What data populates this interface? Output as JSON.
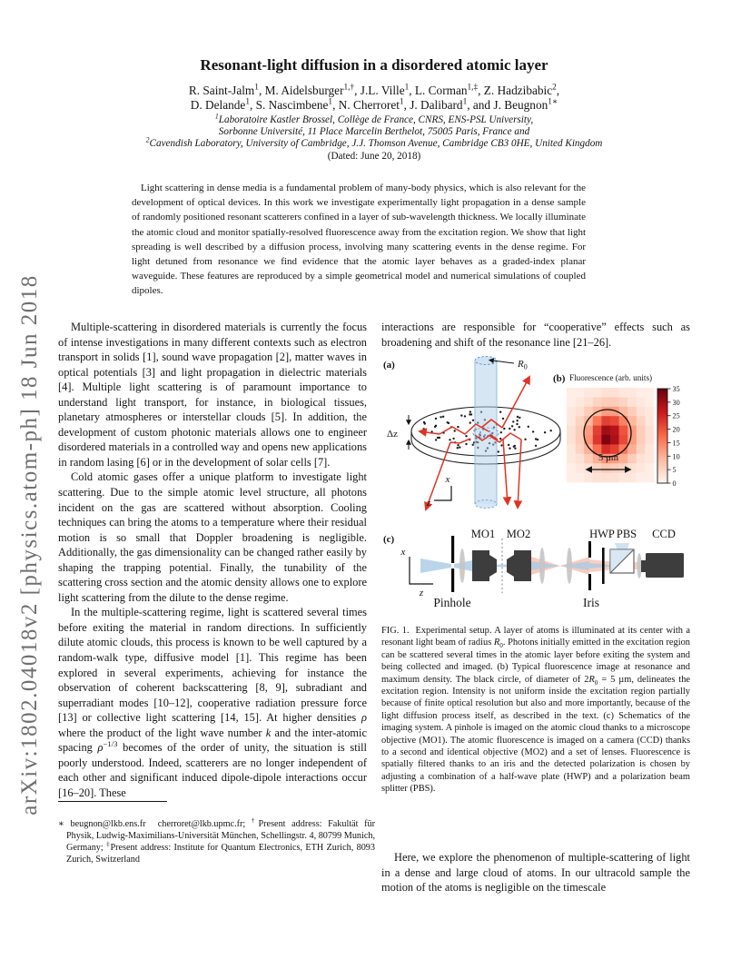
{
  "arxiv_watermark": "arXiv:1802.04018v2 [physics.atom-ph] 18 Jun 2018",
  "header": {
    "title": "Resonant-light diffusion in a disordered atomic layer",
    "authors_line1_html": "R. Saint-Jalm<sup>1</sup>, M. Aidelsburger<sup>1,†</sup>, J.L. Ville<sup>1</sup>, L. Corman<sup>1,‡</sup>, Z. Hadzibabic<sup>2</sup>,",
    "authors_line2_html": "D. Delande<sup>1</sup>, S. Nascimbene<sup>1</sup>, N. Cherroret<sup>1</sup>, J. Dalibard<sup>1</sup>, and J. Beugnon<sup>1∗</sup>",
    "affiliation1_html": "<sup>1</sup>Laboratoire Kastler Brossel, Collège de France, CNRS, ENS-PSL University,",
    "affiliation1b": "Sorbonne Université, 11 Place Marcelin Berthelot, 75005 Paris, France and",
    "affiliation2_html": "<sup>2</sup>Cavendish Laboratory, University of Cambridge, J.J. Thomson Avenue, Cambridge CB3 0HE, United Kingdom",
    "date": "(Dated: June 20, 2018)"
  },
  "abstract": "Light scattering in dense media is a fundamental problem of many-body physics, which is also relevant for the development of optical devices. In this work we investigate experimentally light propagation in a dense sample of randomly positioned resonant scatterers confined in a layer of sub-wavelength thickness. We locally illuminate the atomic cloud and monitor spatially-resolved fluorescence away from the excitation region. We show that light spreading is well described by a diffusion process, involving many scattering events in the dense regime. For light detuned from resonance we find evidence that the atomic layer behaves as a graded-index planar waveguide. These features are reproduced by a simple geometrical model and numerical simulations of coupled dipoles.",
  "left_column": {
    "para1": "Multiple-scattering in disordered materials is currently the focus of intense investigations in many different contexts such as electron transport in solids [1], sound wave propagation [2], matter waves in optical potentials [3] and light propagation in dielectric materials [4]. Multiple light scattering is of paramount importance to understand light transport, for instance, in biological tissues, planetary atmospheres or interstellar clouds [5]. In addition, the development of custom photonic materials allows one to engineer disordered materials in a controlled way and opens new applications in random lasing [6] or in the development of solar cells [7].",
    "para2": "Cold atomic gases offer a unique platform to investigate light scattering. Due to the simple atomic level structure, all photons incident on the gas are scattered without absorption. Cooling techniques can bring the atoms to a temperature where their residual motion is so small that Doppler broadening is negligible. Additionally, the gas dimensionality can be changed rather easily by shaping the trapping potential. Finally, the tunability of the scattering cross section and the atomic density allows one to explore light scattering from the dilute to the dense regime.",
    "para3_html": "In the multiple-scattering regime, light is scattered several times before exiting the material in random directions. In sufficiently dilute atomic clouds, this process is known to be well captured by a random-walk type, diffusive model [1]. This regime has been explored in several experiments, achieving for instance the observation of coherent backscattering [8, 9], subradiant and superradiant modes [10–12], cooperative radiation pressure force [13] or collective light scattering [14, 15]. At higher densities <i>ρ</i> where the product of the light wave number <i>k</i> and the inter-atomic spacing <i>ρ</i><sup>−1/3</sup> becomes of the order of unity, the situation is still poorly understood. Indeed, scatterers are no longer independent of each other and significant induced dipole-dipole interactions occur [16–20]. These",
    "footnote_html": "∗ beugnon@lkb.ens.fr  cherroret@lkb.upmc.fr; <sup>†</sup>Present address: Fakultät für Physik, Ludwig-Maximilians-Universität München, Schellingstr. 4, 80799 Munich, Germany; <sup>‡</sup>Present address: Institute for Quantum Electronics, ETH Zurich, 8093 Zurich, Switzerland"
  },
  "right_column": {
    "para0": "interactions are responsible for “cooperative” effects such as broadening and shift of the resonance line [21–26].",
    "caption_html": "FIG. 1.  Experimental setup. A layer of atoms is illuminated at its center with a resonant light beam of radius <i>R</i><sub>0</sub>. Photons initially emitted in the excitation region can be scattered several times in the atomic layer before exiting the system and being collected and imaged. (b) Typical fluorescence image at resonance and maximum density. The black circle, of diameter of 2<i>R</i><sub>0</sub> = 5 µm, delineates the excitation region. Intensity is not uniform inside the excitation region partially because of finite optical resolution but also and more importantly, because of the light diffusion process itself, as described in the text. (c) Schematics of the imaging system. A pinhole is imaged on the atomic cloud thanks to a microscope objective (MO1). The atomic fluorescence is imaged on a camera (CCD) thanks to a second and identical objective (MO2) and a set of lenses. Fluorescence is spatially filtered thanks to an iris and the detected polarization is chosen by adjusting a combination of a half-wave plate (HWP) and a polarization beam splitter (PBS).",
    "para1": "Here, we explore the phenomenon of multiple-scattering of light in a dense and large cloud of atoms. In our ultracold sample the motion of the atoms is negligible on the timescale"
  },
  "figure": {
    "panel_a": {
      "label": "(a)",
      "radius_label": "R",
      "radius_sub": "0",
      "thickness_label": "Δz",
      "axis_x": "x",
      "axis_z": "z"
    },
    "panel_b": {
      "label": "(b)",
      "title": "Fluorescence (arb. units)",
      "scalebar_label": "5 µm",
      "colorbar_max": 35,
      "colorbar_ticks": [
        35,
        30,
        25,
        20,
        15,
        10,
        5,
        0
      ],
      "colormap_stops": [
        "#fff5f0",
        "#fcbba1",
        "#fb6a4a",
        "#cb181d",
        "#67000d"
      ],
      "heatmap": [
        [
          1,
          1,
          2,
          2,
          3,
          3,
          2,
          2,
          1,
          1
        ],
        [
          1,
          2,
          3,
          5,
          6,
          6,
          5,
          3,
          2,
          1
        ],
        [
          2,
          3,
          6,
          9,
          12,
          12,
          9,
          6,
          3,
          2
        ],
        [
          2,
          5,
          9,
          16,
          22,
          21,
          15,
          9,
          5,
          2
        ],
        [
          3,
          6,
          12,
          22,
          30,
          28,
          20,
          12,
          6,
          3
        ],
        [
          3,
          6,
          13,
          23,
          33,
          29,
          21,
          12,
          6,
          3
        ],
        [
          2,
          5,
          10,
          17,
          24,
          22,
          16,
          10,
          5,
          2
        ],
        [
          2,
          3,
          6,
          10,
          13,
          12,
          10,
          6,
          3,
          2
        ],
        [
          1,
          2,
          3,
          5,
          7,
          6,
          5,
          3,
          2,
          1
        ],
        [
          1,
          1,
          2,
          3,
          3,
          3,
          2,
          2,
          1,
          1
        ]
      ]
    },
    "panel_c": {
      "label": "(c)",
      "label_mo1": "MO1",
      "label_mo2": "MO2",
      "label_hwp": "HWP",
      "label_pbs": "PBS",
      "label_ccd": "CCD",
      "label_pinhole": "Pinhole",
      "label_iris": "Iris",
      "axis_x": "x",
      "axis_z": "z"
    }
  }
}
